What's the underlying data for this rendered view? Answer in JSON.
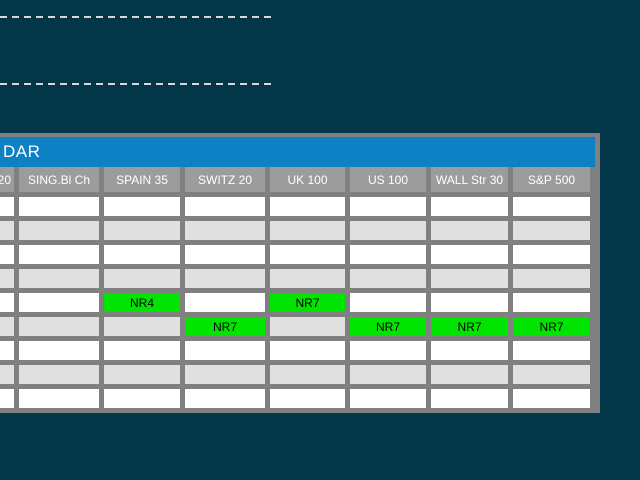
{
  "colors": {
    "background": "#04364a",
    "titlebar_blue": "#0e81c5",
    "header_gray": "#9c9c9c",
    "grid_border_gray": "#808080",
    "row_alt_gray": "#e0e0e0",
    "row_white": "#ffffff",
    "signal_green": "#00e400",
    "dashed_line": "#d8d8d8",
    "title_text": "#ffffff",
    "header_text": "#ffffff",
    "signal_text": "#000000"
  },
  "chart": {
    "dashed_level_lines_count": 2
  },
  "panel": {
    "title_visible": "DAR",
    "columns": [
      "20",
      "SING.Bl Ch",
      "SPAIN 35",
      "SWITZ 20",
      "UK 100",
      "US 100",
      "WALL Str 30",
      "S&P 500"
    ],
    "rows": [
      [
        "",
        "",
        "",
        "",
        "",
        "",
        "",
        ""
      ],
      [
        "",
        "",
        "",
        "",
        "",
        "",
        "",
        ""
      ],
      [
        "",
        "",
        "",
        "",
        "",
        "",
        "",
        ""
      ],
      [
        "",
        "",
        "",
        "",
        "",
        "",
        "",
        ""
      ],
      [
        "",
        "",
        "NR4",
        "",
        "NR7",
        "",
        "",
        ""
      ],
      [
        "",
        "",
        "",
        "NR7",
        "",
        "NR7",
        "NR7",
        "NR7"
      ],
      [
        "",
        "",
        "",
        "",
        "",
        "",
        "",
        ""
      ],
      [
        "",
        "",
        "",
        "",
        "",
        "",
        "",
        ""
      ],
      [
        "",
        "",
        "",
        "",
        "",
        "",
        "",
        ""
      ]
    ]
  }
}
